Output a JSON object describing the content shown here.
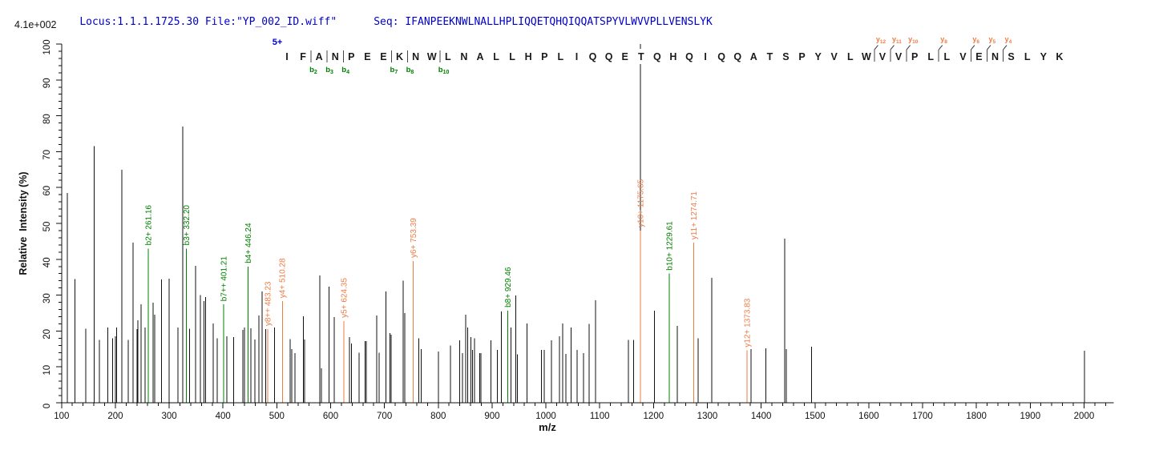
{
  "header": {
    "locus_file": "Locus:1.1.1.1725.30 File:\"YP_002_ID.wiff\"",
    "seq_label": "Seq:",
    "seq_value": "IFANPEEKNWLNALLHPLIQQETQHQIQQATSPYVLWVVPLLVENSLYK"
  },
  "scale_label": "4.1e+002",
  "charge_label": "5+",
  "colors": {
    "b_ion": "#008000",
    "y_ion": "#ee7b44",
    "peak": "#111111",
    "axis": "#111111",
    "header_text": "#0000cc",
    "divider": "#444444"
  },
  "axes": {
    "x_label": "m/z",
    "y_label": "Relative  Intensity (%)",
    "x_min": 100,
    "x_max_label": 2000,
    "x_axis_end": 2055,
    "x_major_step": 100,
    "x_minor_step": 20,
    "y_min": 0,
    "y_max": 100,
    "y_major_step": 10,
    "y_minor_step": 2
  },
  "sequence": {
    "residues": "IFANPEEKNWLNALLHPLIQQETQHQIQQATSPYVLWVVPLLVENSLYK",
    "b_markers": [
      {
        "ion": "b",
        "n": 2,
        "gap": 2
      },
      {
        "ion": "b",
        "n": 3,
        "gap": 3
      },
      {
        "ion": "b",
        "n": 4,
        "gap": 4
      },
      {
        "ion": "b",
        "n": 7,
        "gap": 7
      },
      {
        "ion": "b",
        "n": 8,
        "gap": 8
      },
      {
        "ion": "b",
        "n": 10,
        "gap": 10
      }
    ],
    "y_markers": [
      {
        "ion": "y",
        "n": 12,
        "gap": 37
      },
      {
        "ion": "y",
        "n": 11,
        "gap": 38
      },
      {
        "ion": "y",
        "n": 10,
        "gap": 39
      },
      {
        "ion": "y",
        "n": 8,
        "gap": 41
      },
      {
        "ion": "y",
        "n": 6,
        "gap": 43
      },
      {
        "ion": "y",
        "n": 5,
        "gap": 44
      },
      {
        "ion": "y",
        "n": 4,
        "gap": 45
      }
    ]
  },
  "chart_data": {
    "type": "bar",
    "subtype": "mass-spectrum-stick-plot",
    "title": "",
    "xlabel": "m/z",
    "ylabel": "Relative  Intensity (%)",
    "xlim": [
      100,
      2055
    ],
    "ylim": [
      0,
      100
    ],
    "grid": false,
    "base_peak_absolute_intensity": "4.1e+002",
    "precursor_charge": "5+",
    "peaks": [
      [
        110.6,
        58.5
      ],
      [
        125,
        34.5
      ],
      [
        145,
        20.7
      ],
      [
        160.5,
        71.5
      ],
      [
        170,
        17.5
      ],
      [
        186,
        21
      ],
      [
        195,
        18
      ],
      [
        200,
        18.5
      ],
      [
        202.5,
        21
      ],
      [
        212,
        65
      ],
      [
        224,
        17.5
      ],
      [
        233,
        44.6
      ],
      [
        240,
        20.5
      ],
      [
        242,
        23
      ],
      [
        248,
        27.5
      ],
      [
        255,
        21
      ],
      [
        270,
        27.9
      ],
      [
        273,
        24.6
      ],
      [
        286,
        34.4
      ],
      [
        300,
        34.6
      ],
      [
        316,
        21
      ],
      [
        325,
        77
      ],
      [
        338,
        20.6
      ],
      [
        349,
        38.2
      ],
      [
        358,
        30
      ],
      [
        365,
        28.4
      ],
      [
        368,
        29.5
      ],
      [
        382,
        22.1
      ],
      [
        389,
        18
      ],
      [
        407,
        18.5
      ],
      [
        420,
        18.3
      ],
      [
        437,
        20.3
      ],
      [
        440,
        21
      ],
      [
        452,
        20.8
      ],
      [
        459,
        17.6
      ],
      [
        467,
        24.3
      ],
      [
        473,
        31
      ],
      [
        479,
        20.5
      ],
      [
        496,
        21
      ],
      [
        525,
        17.7
      ],
      [
        528,
        15
      ],
      [
        534,
        13.8
      ],
      [
        549,
        24.1
      ],
      [
        551.5,
        17.6
      ],
      [
        580,
        35.5
      ],
      [
        583,
        9.6
      ],
      [
        597,
        32.4
      ],
      [
        607,
        23.9
      ],
      [
        635,
        18.3
      ],
      [
        639,
        16.5
      ],
      [
        653,
        14
      ],
      [
        664,
        17.2
      ],
      [
        666.5,
        17.2
      ],
      [
        686,
        24.3
      ],
      [
        690,
        14
      ],
      [
        703,
        31
      ],
      [
        710,
        19.4
      ],
      [
        712.5,
        19
      ],
      [
        735,
        34
      ],
      [
        738,
        25
      ],
      [
        764,
        18
      ],
      [
        768,
        15
      ],
      [
        800,
        14.3
      ],
      [
        823,
        16
      ],
      [
        840,
        17.4
      ],
      [
        845,
        13.8
      ],
      [
        851,
        24.6
      ],
      [
        855,
        21
      ],
      [
        861,
        18.3
      ],
      [
        863.5,
        14.7
      ],
      [
        867,
        18
      ],
      [
        877,
        13.8
      ],
      [
        879.5,
        13.8
      ],
      [
        898,
        17.4
      ],
      [
        910,
        14.7
      ],
      [
        917,
        25.4
      ],
      [
        935,
        21
      ],
      [
        944,
        29.9
      ],
      [
        947,
        13.5
      ],
      [
        965,
        22.1
      ],
      [
        992,
        14.7
      ],
      [
        997,
        14.7
      ],
      [
        1010,
        17.4
      ],
      [
        1025,
        18.5
      ],
      [
        1031,
        22.1
      ],
      [
        1037,
        13.6
      ],
      [
        1047,
        21
      ],
      [
        1058,
        14.7
      ],
      [
        1070,
        13.8
      ],
      [
        1080,
        22
      ],
      [
        1092,
        28.6
      ],
      [
        1153,
        17.5
      ],
      [
        1163,
        17.5
      ],
      [
        1175.3,
        100
      ],
      [
        1202,
        25.7
      ],
      [
        1244,
        21.4
      ],
      [
        1283,
        18
      ],
      [
        1308,
        34.8
      ],
      [
        1381,
        15
      ],
      [
        1409,
        15.2
      ],
      [
        1444,
        45.8
      ],
      [
        1447,
        15
      ],
      [
        1494,
        15.6
      ],
      [
        2001,
        14.5
      ]
    ],
    "annotated_peaks": [
      {
        "label": "b2+ 261.16",
        "mz": 261.16,
        "intensity": 43,
        "series": "b"
      },
      {
        "label": "b3+ 332.20",
        "mz": 332.2,
        "intensity": 43,
        "series": "b"
      },
      {
        "label": "b7++ 401.21",
        "mz": 401.21,
        "intensity": 27.4,
        "series": "b"
      },
      {
        "label": "b4+ 446.24",
        "mz": 446.24,
        "intensity": 38,
        "series": "b"
      },
      {
        "label": "y8++ 483.23",
        "mz": 483.23,
        "intensity": 20.5,
        "series": "y"
      },
      {
        "label": "y4+ 510.28",
        "mz": 510.28,
        "intensity": 28.3,
        "series": "y"
      },
      {
        "label": "y5+ 624.35",
        "mz": 624.35,
        "intensity": 22.8,
        "series": "y"
      },
      {
        "label": "y6+ 753.39",
        "mz": 753.39,
        "intensity": 39.5,
        "series": "y"
      },
      {
        "label": "b8+ 929.46",
        "mz": 929.46,
        "intensity": 25.7,
        "series": "b"
      },
      {
        "label": "y10+ 1175.65",
        "mz": 1175.65,
        "intensity": 48,
        "series": "y"
      },
      {
        "label": "b10+ 1229.61",
        "mz": 1229.61,
        "intensity": 36,
        "series": "b"
      },
      {
        "label": "y11+ 1274.71",
        "mz": 1274.71,
        "intensity": 44.6,
        "series": "y"
      },
      {
        "label": "y12+ 1373.83",
        "mz": 1373.83,
        "intensity": 14.6,
        "series": "y"
      }
    ],
    "x_tick_labels": [
      100,
      200,
      300,
      400,
      500,
      600,
      700,
      800,
      900,
      1000,
      1100,
      1200,
      1300,
      1400,
      1500,
      1600,
      1700,
      1800,
      1900,
      2000
    ],
    "y_tick_labels": [
      0,
      10,
      20,
      30,
      40,
      50,
      60,
      70,
      80,
      90,
      100
    ]
  }
}
